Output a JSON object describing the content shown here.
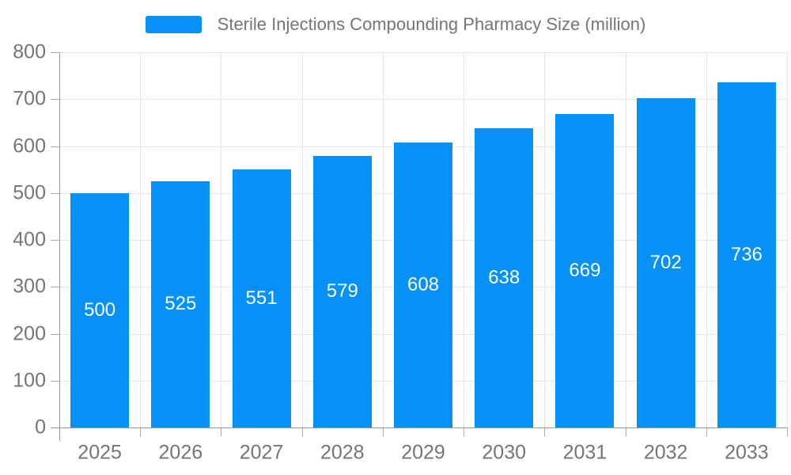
{
  "chart_data": {
    "type": "bar",
    "title": "Sterile Injections Compounding Pharmacy Size (million)",
    "categories": [
      "2025",
      "2026",
      "2027",
      "2028",
      "2029",
      "2030",
      "2031",
      "2032",
      "2033"
    ],
    "series": [
      {
        "name": "Sterile Injections Compounding Pharmacy Size (million)",
        "values": [
          500,
          525,
          551,
          579,
          608,
          638,
          669,
          702,
          736
        ]
      }
    ],
    "data_labels_visible": true,
    "xlabel": "",
    "ylabel": "",
    "ylim": [
      0,
      800
    ],
    "ytick_step": 100,
    "yticks": [
      0,
      100,
      200,
      300,
      400,
      500,
      600,
      700,
      800
    ],
    "grid": true,
    "legend_position": "top-center",
    "colors": {
      "bar": "#0591f5",
      "bar_label_text": "#ffffff",
      "axis_line": "#999999",
      "tick_line": "#aaaaaa",
      "grid_line": "#e6e6e6",
      "axis_text": "#757575",
      "legend_text": "#757575",
      "background": "#ffffff"
    }
  }
}
